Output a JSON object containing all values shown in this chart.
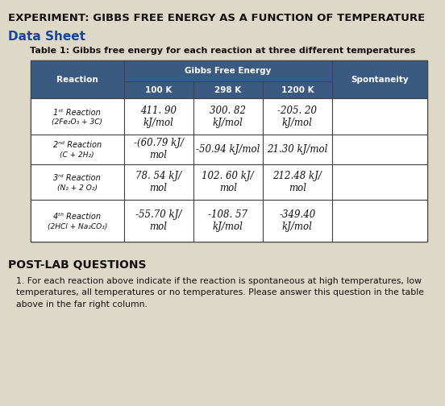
{
  "title": "EXPERIMENT: GIBBS FREE ENERGY AS A FUNCTION OF TEMPERATURE",
  "section_title": "Data Sheet",
  "table_title": "Table 1: Gibbs free energy for each reaction at three different temperatures",
  "post_lab_title": "POST-LAB QUESTIONS",
  "post_lab_text": "1. For each reaction above indicate if the reaction is spontaneous at high temperatures, low\ntemperatures, all temperatures or no temperatures. Please answer this question in the table\nabove in the far right column.",
  "bg_color": "#ddd8c8",
  "header_bg": "#3a5a82",
  "header_text_color": "#ffffff",
  "section_title_color": "#1a4499",
  "cell_data": [
    [
      "1ˢᵗ Reaction",
      "(2Fe₂O₃ + 3C)",
      "411. 90\nkJ/mol",
      "300. 82\nkJ/mol",
      "-205. 20\nkJ/mol"
    ],
    [
      "2ⁿᵈ Reaction",
      "(C + 2H₂)",
      "-(60.79 kJ/\nmol",
      "-50.94 kJ/mol",
      "21.30 kJ/mol"
    ],
    [
      "3ʳᵈ Reaction",
      "(N₂ + 2 O₂)",
      "78. 54 kJ/\nmol",
      "102. 60 kJ/\nmol",
      "212.48 kJ/\nmol"
    ],
    [
      "4ᵗʰ Reaction",
      "(2HCl + Na₂CO₃)",
      "-55.70 kJ/\nmol",
      "-108. 57\nkJ/mol",
      "-349.40\nkJ/mol"
    ]
  ],
  "title_fontsize": 9.5,
  "section_fontsize": 11,
  "table_title_fontsize": 8,
  "header_fontsize": 7.5,
  "cell_label_fontsize": 7,
  "handwritten_fontsize": 8.5,
  "postlab_title_fontsize": 10,
  "postlab_text_fontsize": 7.8
}
